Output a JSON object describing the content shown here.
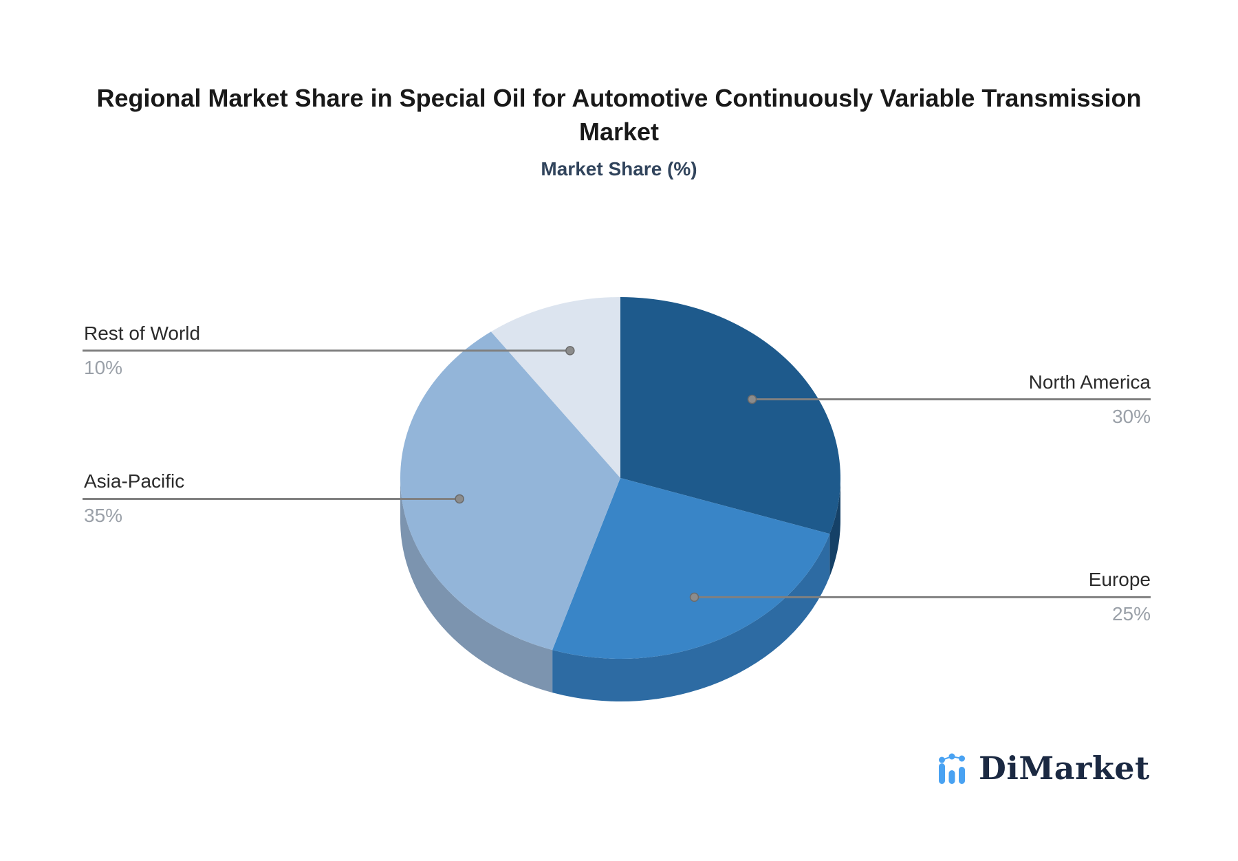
{
  "header": {
    "title_line1": "Regional Market Share in Special Oil for Automotive Continuously Variable Transmission",
    "title_line2": "Market",
    "subtitle": "Market Share (%)"
  },
  "chart_data": {
    "type": "pie",
    "style": "3d",
    "title": "Regional Market Share in Special Oil for Automotive Continuously Variable Transmission Market",
    "subtitle": "Market Share (%)",
    "unit": "%",
    "start_angle_deg_from_top": 0,
    "direction": "clockwise",
    "legend_position": "none",
    "leader_line_color": "#808080",
    "leader_dot_color": "#8c8c8c",
    "label_color": "#2b2b2b",
    "percent_color": "#9aa0a8",
    "slices": [
      {
        "label": "North America",
        "value": 30,
        "display": "30%",
        "color": "#1e5a8c",
        "side_color": "#154167",
        "label_side": "right"
      },
      {
        "label": "Europe",
        "value": 25,
        "display": "25%",
        "color": "#3985c7",
        "side_color": "#2d6ba3",
        "label_side": "right"
      },
      {
        "label": "Asia-Pacific",
        "value": 35,
        "display": "35%",
        "color": "#93b5d9",
        "side_color": "#7c94af",
        "label_side": "left"
      },
      {
        "label": "Rest of World",
        "value": 10,
        "display": "10%",
        "color": "#dce4ef",
        "side_color": "#c3cedd",
        "label_side": "left"
      }
    ]
  },
  "branding": {
    "logo_text": "DiMarket",
    "logo_icon": "bar-chart-with-dots-icon",
    "logo_text_color": "#1b2942",
    "logo_accent_color": "#49a2f2"
  }
}
